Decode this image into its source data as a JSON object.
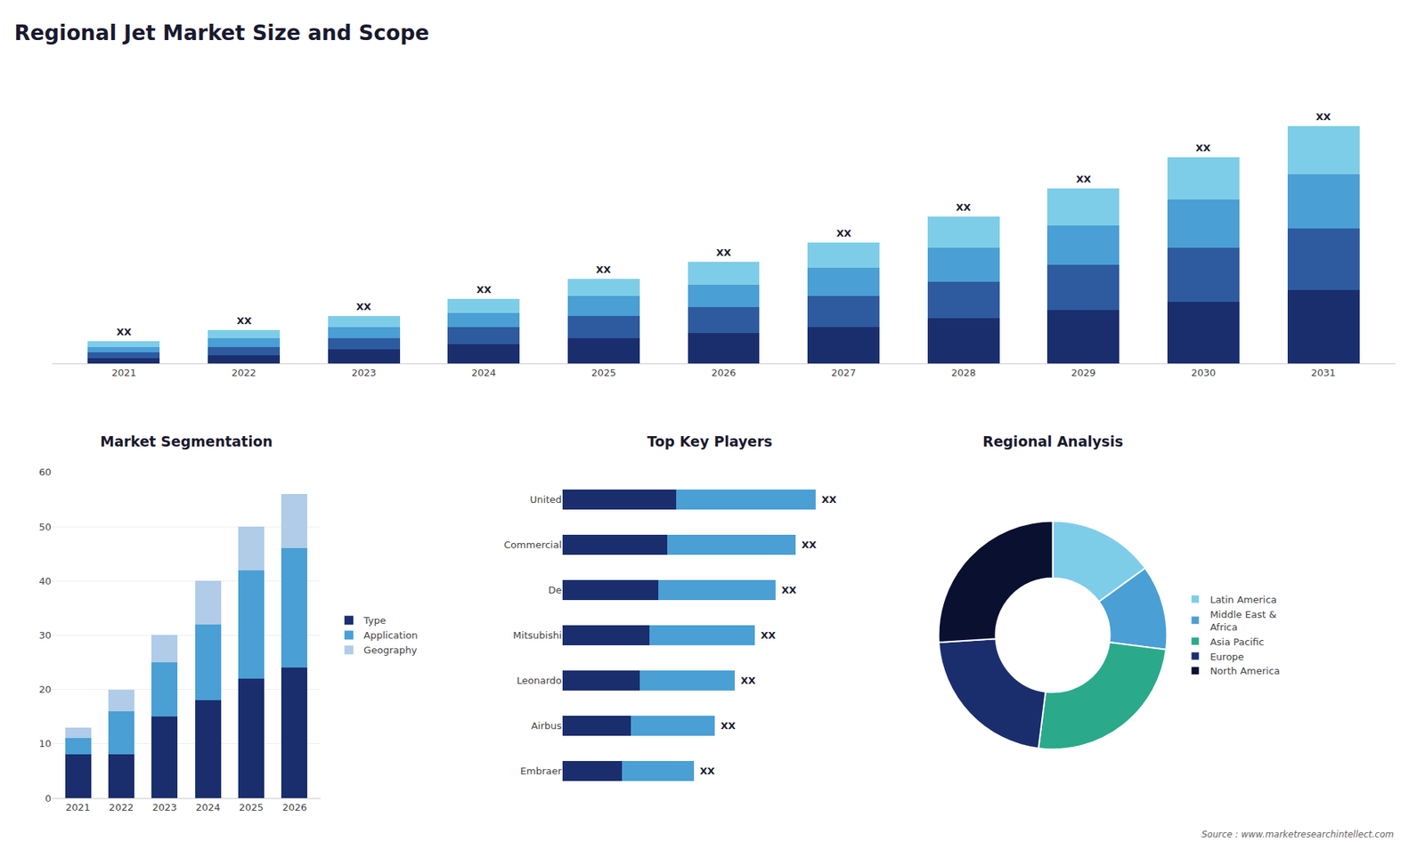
{
  "chart_data": [
    {
      "type": "bar",
      "title": "Regional Jet Market Size and Scope",
      "categories": [
        "2021",
        "2022",
        "2023",
        "2024",
        "2025",
        "2026",
        "2027",
        "2028",
        "2029",
        "2030",
        "2031"
      ],
      "series": [
        {
          "color": "#1a2e6e",
          "values": [
            2,
            3,
            5,
            7,
            9,
            11,
            13,
            16,
            19,
            22,
            26
          ]
        },
        {
          "color": "#2e5aa0",
          "values": [
            2,
            3,
            4,
            6,
            8,
            9,
            11,
            13,
            16,
            19,
            22
          ]
        },
        {
          "color": "#4a9fd4",
          "values": [
            2,
            3,
            4,
            5,
            7,
            8,
            10,
            12,
            14,
            17,
            19
          ]
        },
        {
          "color": "#7ecde8",
          "values": [
            2,
            3,
            4,
            5,
            6,
            8,
            9,
            11,
            13,
            15,
            17
          ]
        }
      ],
      "stacked": true,
      "ylim": [
        0,
        102.48
      ],
      "tick_labels": "x",
      "grid": false,
      "annotations": [
        {
          "x": "2021",
          "text": "XX"
        },
        {
          "x": "2022",
          "text": "XX"
        },
        {
          "x": "2023",
          "text": "XX"
        },
        {
          "x": "2024",
          "text": "XX"
        },
        {
          "x": "2025",
          "text": "XX"
        },
        {
          "x": "2026",
          "text": "XX"
        },
        {
          "x": "2027",
          "text": "XX"
        },
        {
          "x": "2028",
          "text": "XX"
        },
        {
          "x": "2029",
          "text": "XX"
        },
        {
          "x": "2030",
          "text": "XX"
        },
        {
          "x": "2031",
          "text": "XX"
        }
      ]
    },
    {
      "type": "bar",
      "title": "Market Segmentation",
      "categories": [
        "2021",
        "2022",
        "2023",
        "2024",
        "2025",
        "2026"
      ],
      "series": [
        {
          "name": "Type",
          "color": "#1a2e6e",
          "values": [
            8,
            8,
            15,
            18,
            22,
            24
          ]
        },
        {
          "name": "Application",
          "color": "#4a9fd4",
          "values": [
            3,
            8,
            10,
            14,
            20,
            22
          ]
        },
        {
          "name": "Geography",
          "color": "#b0cce8",
          "values": [
            2,
            4,
            5,
            8,
            8,
            10
          ]
        }
      ],
      "stacked": true,
      "ylim": [
        0,
        60
      ],
      "yticks": [
        0,
        10,
        20,
        30,
        40,
        50,
        60
      ],
      "grid": true,
      "legend": "right"
    },
    {
      "type": "bar",
      "title": "Top Key Players",
      "orientation": "horizontal",
      "categories": [
        "Embraer",
        "Airbus",
        "Leonardo",
        "Mitsubishi",
        "De",
        "Commercial",
        "United"
      ],
      "series": [
        {
          "color": "#1a2e6e",
          "values": [
            2.106,
            2.43,
            2.754,
            3.078,
            3.402,
            3.726,
            4.05
          ]
        },
        {
          "color": "#4a9fd4",
          "values": [
            2.574,
            2.97,
            3.366,
            3.762,
            4.158,
            4.554,
            4.95
          ]
        }
      ],
      "stacked": true,
      "xlim": [
        0,
        10.5
      ],
      "tick_labels": "y",
      "grid": false,
      "annotations": [
        {
          "y": "Embraer",
          "text": "XX"
        },
        {
          "y": "Airbus",
          "text": "XX"
        },
        {
          "y": "Leonardo",
          "text": "XX"
        },
        {
          "y": "Mitsubishi",
          "text": "XX"
        },
        {
          "y": "De",
          "text": "XX"
        },
        {
          "y": "Commercial",
          "text": "XX"
        },
        {
          "y": "United",
          "text": "XX"
        }
      ]
    },
    {
      "type": "donut",
      "title": "Regional Analysis",
      "categories": [
        "Latin America",
        "Middle East &\nAfrica",
        "Asia Pacific",
        "Europe",
        "North America"
      ],
      "values": [
        15,
        12,
        25,
        22,
        26
      ],
      "colors": [
        "#7ecde8",
        "#4a9fd4",
        "#2aaa8a",
        "#1a2e6e",
        "#0a1030"
      ],
      "legend": "right",
      "annotations": [
        "Source : www.marketresearchintellect.com"
      ]
    }
  ]
}
